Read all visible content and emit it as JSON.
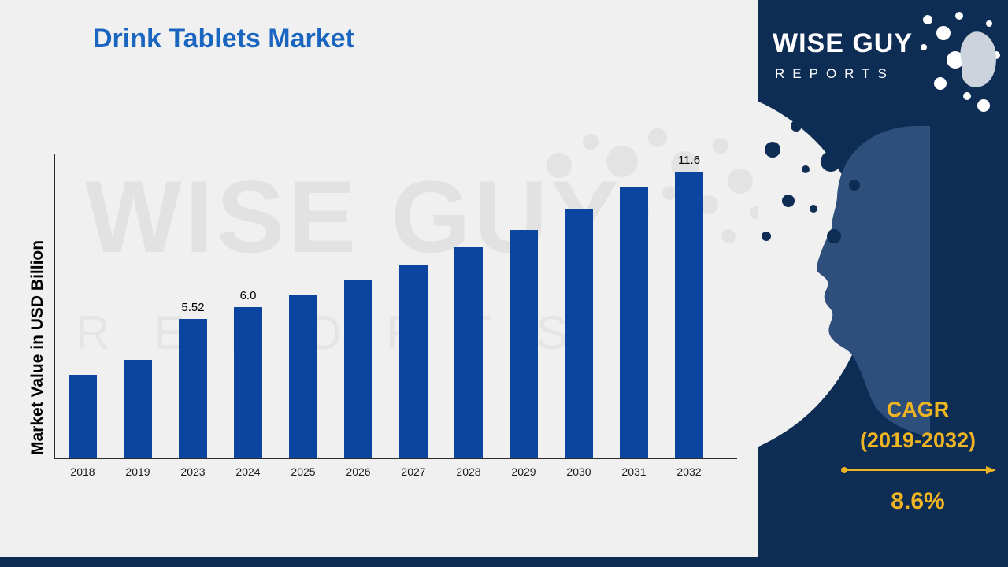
{
  "page": {
    "title": "Drink Tablets Market"
  },
  "watermark": {
    "line1": "WISE GUY",
    "line2": "REPORTS"
  },
  "logo": {
    "name": "WISE GUY",
    "reports": "REPORTS"
  },
  "sidebar": {
    "cagr_label": "CAGR",
    "cagr_range": "(2019-2032)",
    "cagr_value": "8.6%"
  },
  "chart_data": {
    "type": "bar",
    "title": "Drink Tablets Market",
    "xlabel": "",
    "ylabel": "Market Value in USD Billion",
    "categories": [
      "2018",
      "2019",
      "2023",
      "2024",
      "2025",
      "2026",
      "2027",
      "2028",
      "2029",
      "2030",
      "2031",
      "2032"
    ],
    "values": [
      3.3,
      3.9,
      5.52,
      6.0,
      6.5,
      7.1,
      7.7,
      8.4,
      9.1,
      9.9,
      10.8,
      11.6
    ],
    "bar_labels": [
      "",
      "",
      "5.52",
      "6.0",
      "",
      "",
      "",
      "",
      "",
      "",
      "",
      "11.6"
    ],
    "ylim": [
      0,
      12.2
    ],
    "grid": false,
    "legend": null,
    "bar_color": "#0c45a0"
  },
  "colors": {
    "background": "#f0f0f0",
    "panel_navy": "#0e2d55",
    "accent_gold": "#eeb422",
    "title_blue": "#1a65c0",
    "bar_blue": "#0c45a0",
    "watermark_gray": "#e2e2e2"
  }
}
